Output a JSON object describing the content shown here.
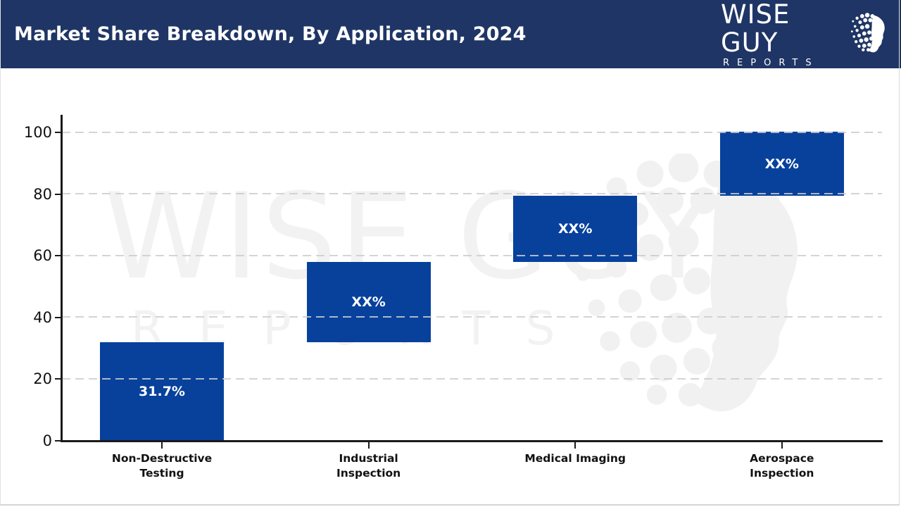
{
  "header": {
    "title": "Market Share Breakdown, By Application, 2024",
    "bg_color": "#1f3565",
    "logo": {
      "line1": "WISE GUY",
      "line2": "REPORTS"
    }
  },
  "watermark": {
    "line1": "WISE GUY",
    "line2": "REPORTS"
  },
  "chart_data": {
    "type": "bar",
    "subtype": "waterfall",
    "title": "Market Share Breakdown, By Application, 2024",
    "categories": [
      "Non-Destructive Testing",
      "Industrial Inspection",
      "Medical Imaging",
      "Aerospace Inspection"
    ],
    "category_lines": [
      [
        "Non-Destructive",
        "Testing"
      ],
      [
        "Industrial",
        "Inspection"
      ],
      [
        "Medical Imaging"
      ],
      [
        "Aerospace",
        "Inspection"
      ]
    ],
    "segments": [
      {
        "category": "Non-Destructive Testing",
        "from": 0,
        "to": 31.7,
        "label": "31.7%"
      },
      {
        "category": "Industrial Inspection",
        "from": 31.7,
        "to": 57.7,
        "label": "XX%"
      },
      {
        "category": "Medical Imaging",
        "from": 57.7,
        "to": 79.2,
        "label": "XX%"
      },
      {
        "category": "Aerospace Inspection",
        "from": 79.2,
        "to": 100,
        "label": "XX%"
      }
    ],
    "ylim": [
      0,
      100
    ],
    "yticks": [
      0,
      20,
      40,
      60,
      80,
      100
    ],
    "xlabel": "",
    "ylabel": "",
    "grid": "horizontal-dashed",
    "legend": "none",
    "bar_color": "#07419c",
    "bar_label_color": "#ffffff",
    "axis_color": "#1a1a1a",
    "gridline_color": "#cdcdcd"
  }
}
